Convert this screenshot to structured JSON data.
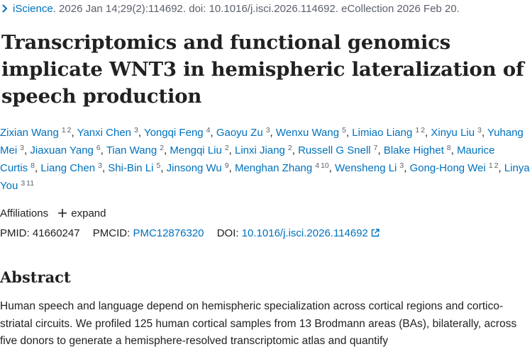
{
  "citation": {
    "journal": "iScience",
    "details": ". 2026 Jan 14;29(2):114692. doi: 10.1016/j.isci.2026.114692. eCollection 2026 Feb 20."
  },
  "title": "Transcriptomics and functional genomics implicate WNT3 in hemispheric lateralization of speech production",
  "authors": [
    {
      "name": "Zixian Wang",
      "affils": [
        "1",
        "2"
      ]
    },
    {
      "name": "Yanxi Chen",
      "affils": [
        "3"
      ]
    },
    {
      "name": "Yongqi Feng",
      "affils": [
        "4"
      ]
    },
    {
      "name": "Gaoyu Zu",
      "affils": [
        "3"
      ]
    },
    {
      "name": "Wenxu Wang",
      "affils": [
        "5"
      ]
    },
    {
      "name": "Limiao Liang",
      "affils": [
        "1",
        "2"
      ]
    },
    {
      "name": "Xinyu Liu",
      "affils": [
        "3"
      ]
    },
    {
      "name": "Yuhang Mei",
      "affils": [
        "3"
      ]
    },
    {
      "name": "Jiaxuan Yang",
      "affils": [
        "6"
      ]
    },
    {
      "name": "Tian Wang",
      "affils": [
        "2"
      ]
    },
    {
      "name": "Mengqi Liu",
      "affils": [
        "2"
      ]
    },
    {
      "name": "Linxi Jiang",
      "affils": [
        "2"
      ]
    },
    {
      "name": "Russell G Snell",
      "affils": [
        "7"
      ]
    },
    {
      "name": "Blake Highet",
      "affils": [
        "8"
      ]
    },
    {
      "name": "Maurice Curtis",
      "affils": [
        "8"
      ]
    },
    {
      "name": "Liang Chen",
      "affils": [
        "3"
      ]
    },
    {
      "name": "Shi-Bin Li",
      "affils": [
        "5"
      ]
    },
    {
      "name": "Jinsong Wu",
      "affils": [
        "9"
      ]
    },
    {
      "name": "Menghan Zhang",
      "affils": [
        "4",
        "10"
      ]
    },
    {
      "name": "Wensheng Li",
      "affils": [
        "3"
      ]
    },
    {
      "name": "Gong-Hong Wei",
      "affils": [
        "1",
        "2"
      ]
    },
    {
      "name": "Linya You",
      "affils": [
        "3",
        "11"
      ]
    }
  ],
  "affiliations": {
    "label": "Affiliations",
    "expand_label": "expand"
  },
  "identifiers": {
    "pmid_label": "PMID:",
    "pmid": "41660247",
    "pmcid_label": "PMCID:",
    "pmcid": "PMC12876320",
    "doi_label": "DOI:",
    "doi": "10.1016/j.isci.2026.114692"
  },
  "abstract": {
    "heading": "Abstract",
    "text": "Human speech and language depend on hemispheric specialization across cortical regions and cortico-striatal circuits. We profiled 125 human cortical samples from 13 Brodmann areas (BAs), bilaterally, across five donors to generate a hemisphere-resolved transcriptomic atlas and quantify"
  },
  "colors": {
    "link": "#0071bc",
    "text": "#212121",
    "muted": "#5b616b"
  }
}
